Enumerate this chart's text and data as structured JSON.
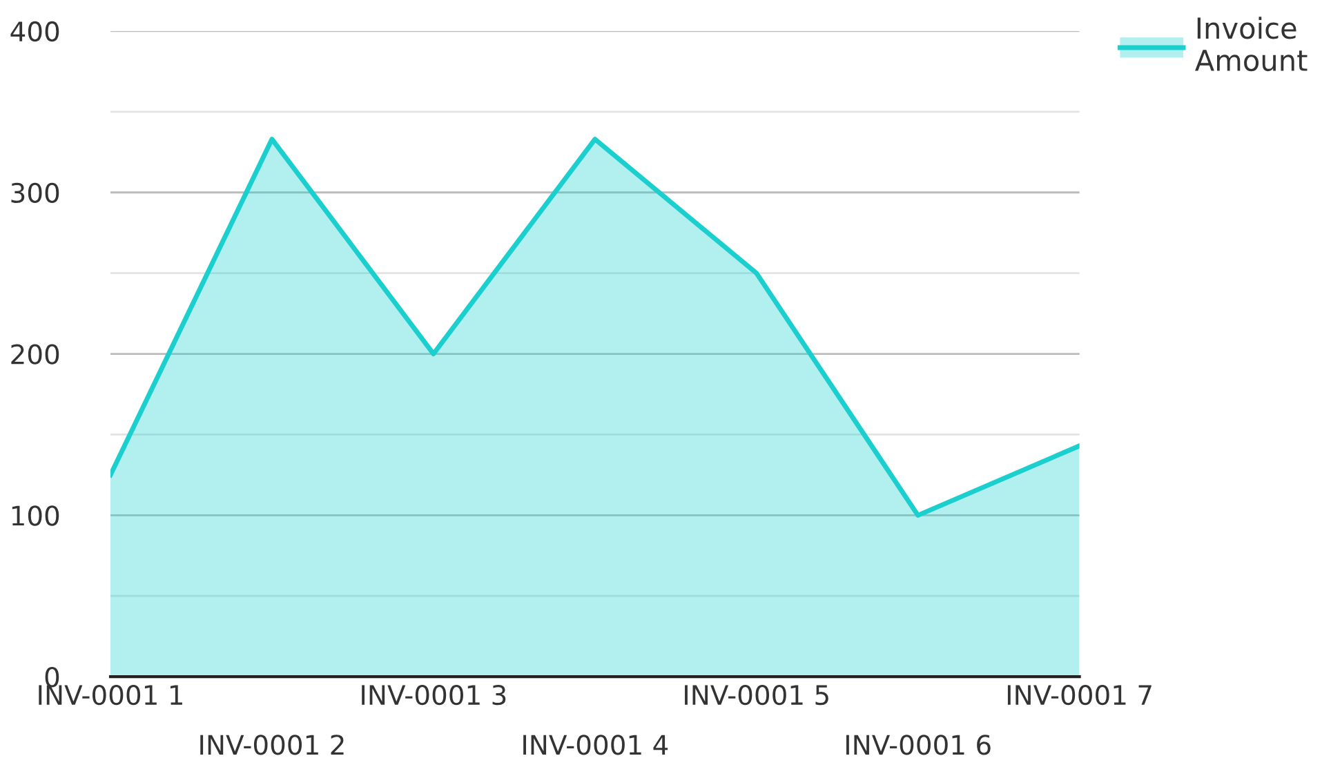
{
  "chart_data": {
    "type": "area",
    "categories": [
      "INV-0001 1",
      "INV-0001 2",
      "INV-0001 3",
      "INV-0001 4",
      "INV-0001 5",
      "INV-0001 6",
      "INV-0001 7"
    ],
    "series": [
      {
        "name": "Invoice Amount",
        "color": "#1ccfcf",
        "values": [
          125,
          333,
          200,
          333,
          250,
          100,
          143
        ]
      }
    ],
    "ylim": [
      0,
      400
    ],
    "yticks": [
      0,
      {
        "value": 50,
        "label": null
      },
      100,
      {
        "value": 150,
        "label": null
      },
      200,
      {
        "value": 250,
        "label": null
      },
      300,
      {
        "value": 350,
        "label": null
      },
      400
    ],
    "grid": "y",
    "legend": "top right",
    "marker": "none",
    "line_style": "solid"
  }
}
